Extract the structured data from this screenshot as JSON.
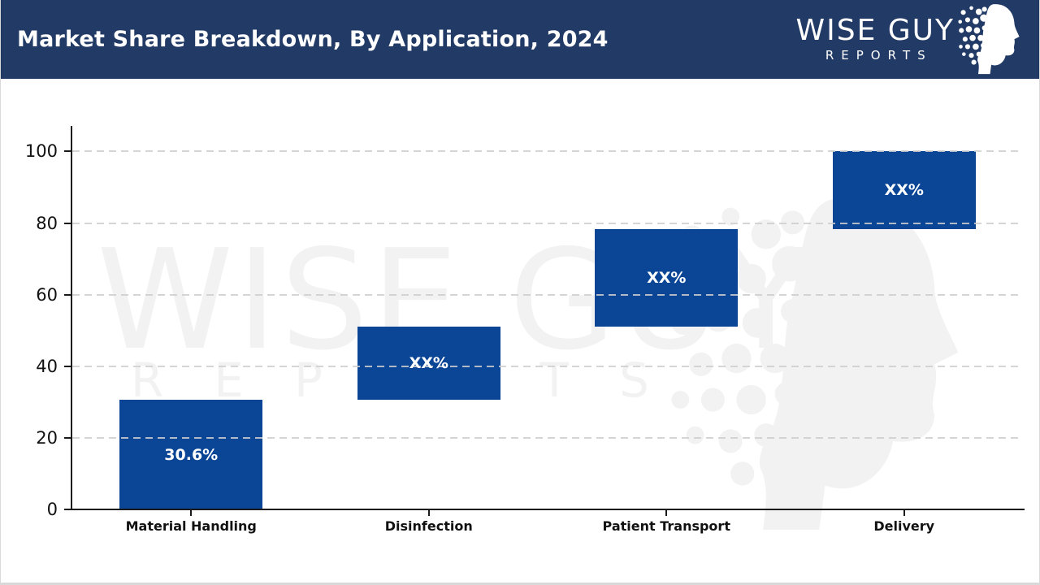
{
  "header": {
    "title": "Market Share Breakdown, By Application, 2024"
  },
  "brand": {
    "name": "WISE GUY",
    "subtitle": "REPORTS"
  },
  "watermark": {
    "line1": "WISE GUY",
    "line2": "REPORTS"
  },
  "chart_data": {
    "type": "bar",
    "subtype": "floating-segment-waterfall",
    "title": "Market Share Breakdown, By Application, 2024",
    "categories": [
      "Material Handling",
      "Disinfection",
      "Patient Transport",
      "Delivery"
    ],
    "bars": [
      {
        "category": "Material Handling",
        "start": 0,
        "end": 30.6,
        "label": "30.6%"
      },
      {
        "category": "Disinfection",
        "start": 30.6,
        "end": 51.1,
        "label": "XX%"
      },
      {
        "category": "Patient Transport",
        "start": 51.1,
        "end": 78.4,
        "label": "XX%"
      },
      {
        "category": "Delivery",
        "start": 78.4,
        "end": 100,
        "label": "XX%"
      }
    ],
    "yticks": [
      0,
      20,
      40,
      60,
      80,
      100
    ],
    "ylim": [
      0,
      106
    ],
    "xlabel": "",
    "ylabel": "",
    "grid": "dashed-horizontal",
    "legend": "none",
    "bar_color": "#0a4596",
    "bar_label_color": "#ffffff",
    "axis_color": "#1a1a1a",
    "header_color": "#213a66"
  }
}
